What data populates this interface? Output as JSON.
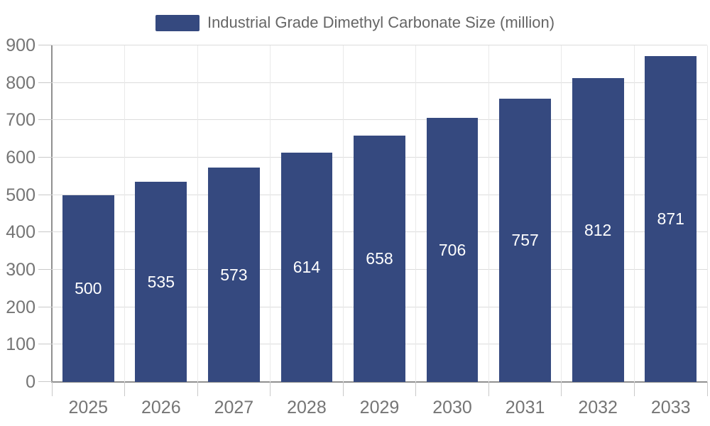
{
  "chart_data": {
    "type": "bar",
    "title": "Industrial Grade Dimethyl Carbonate Size (million)",
    "categories": [
      "2025",
      "2026",
      "2027",
      "2028",
      "2029",
      "2030",
      "2031",
      "2032",
      "2033"
    ],
    "values": [
      500,
      535,
      573,
      614,
      658,
      706,
      757,
      812,
      871
    ],
    "xlabel": "",
    "ylabel": "",
    "ylim": [
      0,
      900
    ],
    "ytick_step": 100,
    "grid": true,
    "legend_position": "top",
    "bar_labels": "inside-center"
  },
  "legend": {
    "label": "Industrial Grade Dimethyl Carbonate Size (million)"
  },
  "colors": {
    "bar": "#35497f",
    "bar_label": "#ffffff",
    "axis_line": "#909090",
    "tick": "#c9c9c9",
    "grid_h": "#dcdcdc",
    "grid_v": "#e9e9e9",
    "axis_text": "#757575",
    "legend_text": "#666666",
    "background": "#ffffff"
  }
}
